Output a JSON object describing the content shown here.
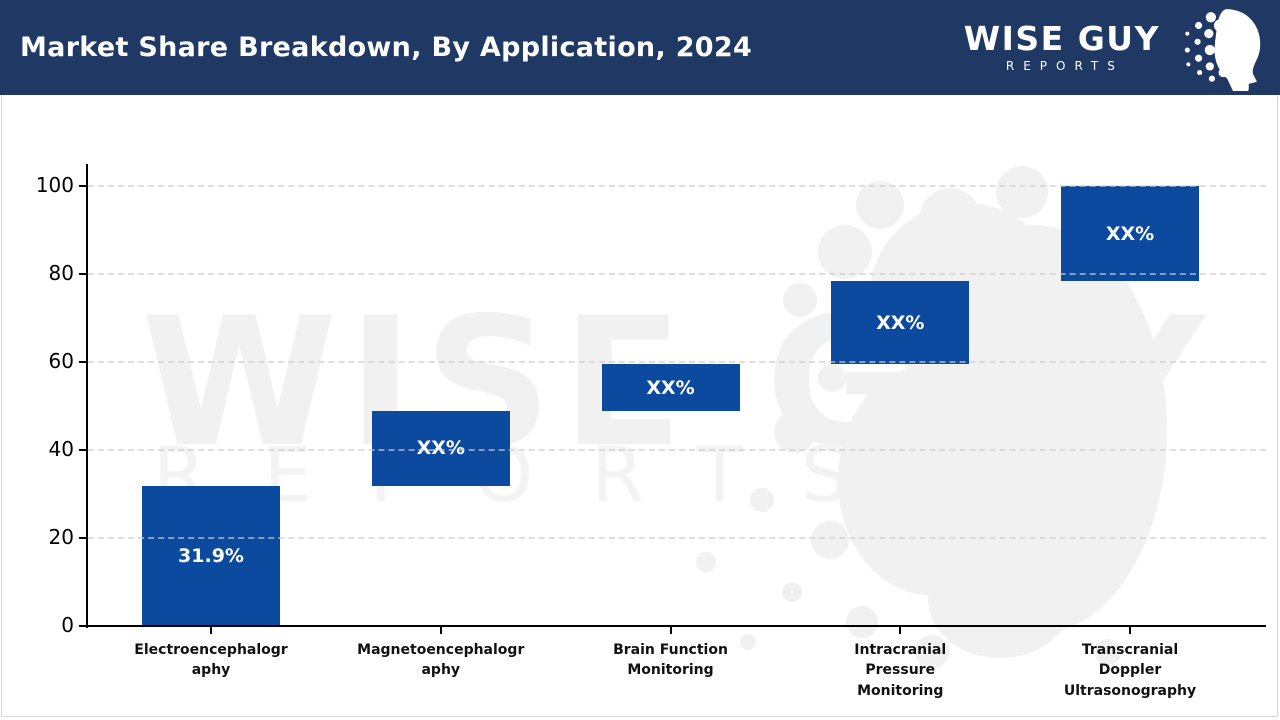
{
  "header": {
    "title": "Market Share Breakdown, By Application, 2024",
    "bg_color": "#1f3864",
    "logo": {
      "name": "WISE GUY",
      "tagline": "REPORTS"
    }
  },
  "watermark": {
    "line1": "WISE GUY",
    "line2": "REPORTS"
  },
  "chart_data": {
    "type": "bar",
    "subtype": "floating-waterfall",
    "title": "Market Share Breakdown, By Application, 2024",
    "categories": [
      "Electroencephalogr\naphy",
      "Magnetoencephalogr\naphy",
      "Brain Function\nMonitoring",
      "Intracranial\nPressure\nMonitoring",
      "Transcranial\nDoppler\nUltrasonography"
    ],
    "segments": [
      {
        "start": 0,
        "end": 31.9,
        "label": "31.9%"
      },
      {
        "start": 31.9,
        "end": 48.9,
        "label": "XX%"
      },
      {
        "start": 48.9,
        "end": 59.5,
        "label": "XX%"
      },
      {
        "start": 59.5,
        "end": 78.4,
        "label": "XX%"
      },
      {
        "start": 78.4,
        "end": 100,
        "label": "XX%"
      }
    ],
    "xlabel": "",
    "ylabel": "",
    "yticks": [
      0,
      20,
      40,
      60,
      80,
      100
    ],
    "ylim": [
      0,
      105
    ],
    "grid": "horizontal-dashed",
    "legend": "none",
    "bar_color": "#0b4a9e",
    "bar_label_color": "#ffffff",
    "axis_color": "#000000",
    "gridline_color": "#d9d9d9"
  }
}
